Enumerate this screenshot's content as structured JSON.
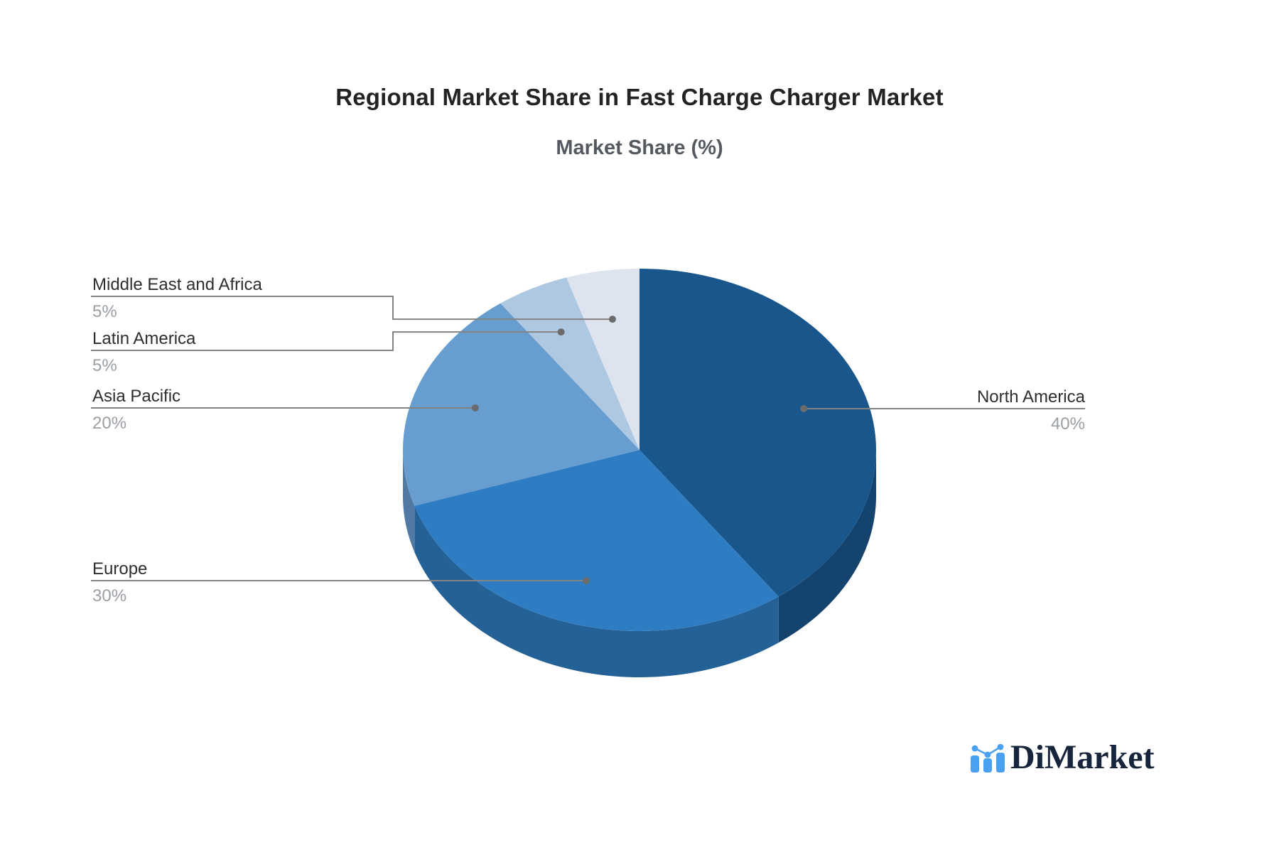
{
  "title": "Regional Market Share in Fast Charge Charger Market",
  "subtitle": "Market Share (%)",
  "brand": {
    "name": "DiMarket"
  },
  "chart_data": {
    "type": "pie",
    "title": "Regional Market Share in Fast Charge Charger Market",
    "subtitle": "Market Share (%)",
    "unit": "%",
    "style": "3d-pie",
    "start_angle_deg": 0,
    "direction": "clockwise",
    "label_format": "{value}%",
    "legend": false,
    "slices": [
      {
        "label": "North America",
        "value": 40,
        "color": "#19568C"
      },
      {
        "label": "Europe",
        "value": 30,
        "color": "#2E7CC2"
      },
      {
        "label": "Asia Pacific",
        "value": 20,
        "color": "#689DD0"
      },
      {
        "label": "Latin America",
        "value": 5,
        "color": "#AEC8E2"
      },
      {
        "label": "Middle East and Africa",
        "value": 5,
        "color": "#DDE3EF"
      }
    ]
  },
  "colors": {
    "background": "#FFFFFF",
    "title_text": "#232323",
    "subtitle_text": "#54595F",
    "label_text": "#2E2E2E",
    "percent_text": "#9A9FA4",
    "connector_line": "#838383",
    "connector_dot": "#6B6B6B",
    "brand_icon": "#4BA1F1",
    "brand_text": "#16243C"
  }
}
